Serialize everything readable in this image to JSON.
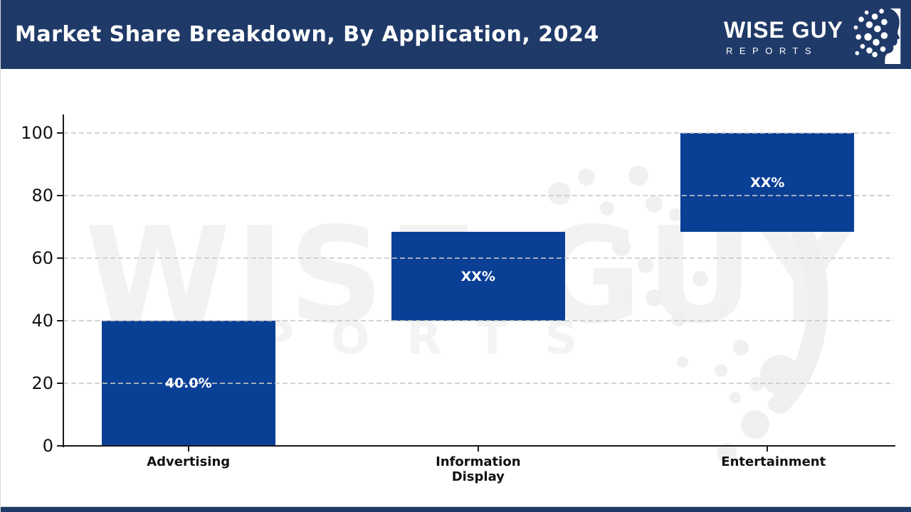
{
  "header": {
    "title": "Market Share Breakdown, By Application, 2024",
    "logo": {
      "name": "WISE GUY",
      "sub": "REPORTS"
    }
  },
  "watermark": {
    "line1": "WISE GUY",
    "line2": "REPORTS"
  },
  "chart_data": {
    "type": "bar",
    "subtype": "floating-segment-waterfall",
    "title": "Market Share Breakdown, By Application, 2024",
    "categories": [
      "Advertising",
      "Information Display",
      "Entertainment"
    ],
    "series": [
      {
        "category": "Advertising",
        "start": 0,
        "end": 40.0,
        "label": "40.0%"
      },
      {
        "category": "Information Display",
        "start": 40.0,
        "end": 68.4,
        "label": "XX%"
      },
      {
        "category": "Entertainment",
        "start": 68.4,
        "end": 100.0,
        "label": "XX%"
      }
    ],
    "ylim": [
      0,
      105
    ],
    "yticks": [
      0,
      20,
      40,
      60,
      80,
      100
    ],
    "xlabel": "",
    "ylabel": "",
    "grid": "horizontal-dashed",
    "legend": "none",
    "bar_color": "#0a3f96",
    "label_color": "#ffffff"
  },
  "colors": {
    "header_bg": "#1f3a68",
    "footer_bg": "#1f3a68",
    "bar": "#0a3f96",
    "grid": "#dcdcdc",
    "watermark": "#f2f2f2",
    "axis": "#1a1a1a"
  }
}
